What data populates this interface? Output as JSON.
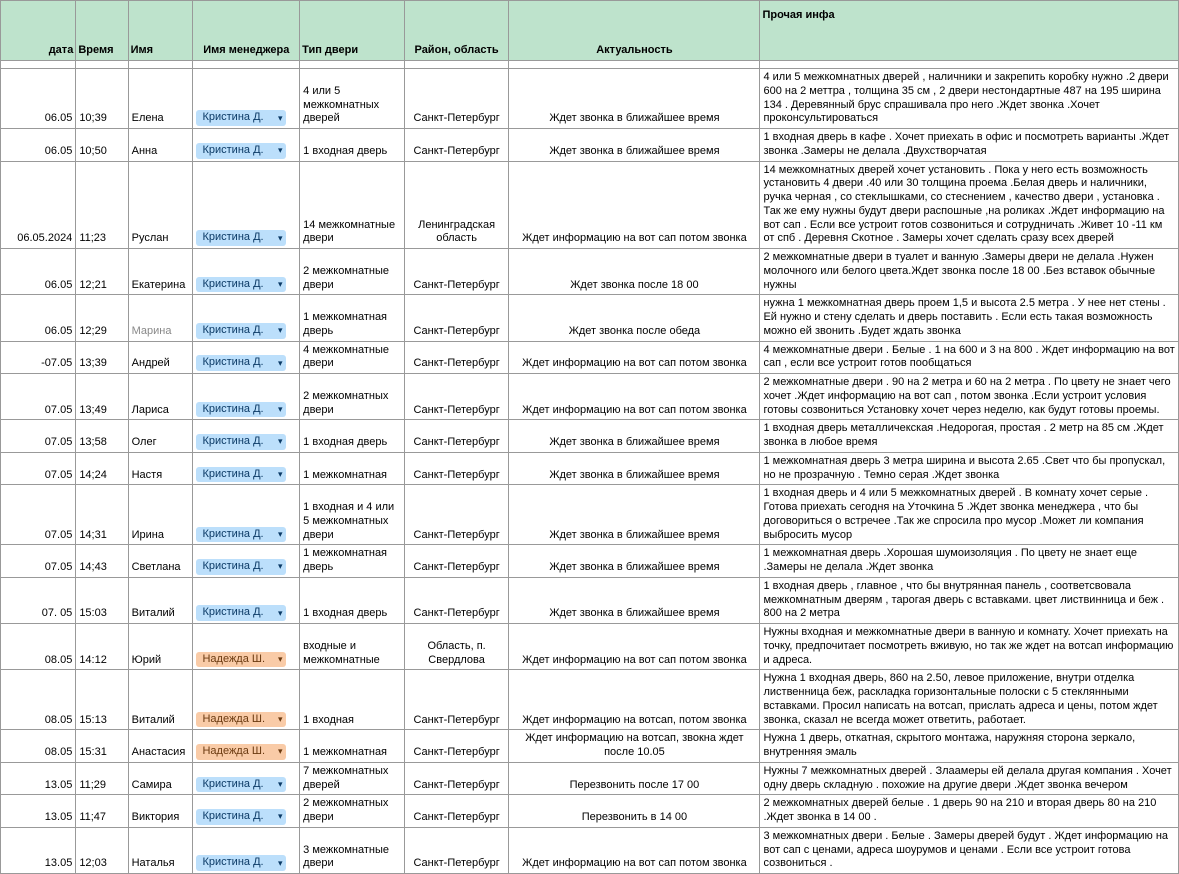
{
  "columns": {
    "date": "дата",
    "time": "Время",
    "name": "Имя",
    "manager": "Имя менеджера",
    "doortype": "Тип двери",
    "region": "Район, область",
    "actuality": "Актуальность",
    "info": "Прочая инфа"
  },
  "colors": {
    "header_bg": "#bee3cc",
    "manager_blue_bg": "#bcdffb",
    "manager_blue_fg": "#0b3a66",
    "manager_orange_bg": "#f9cba7",
    "manager_orange_fg": "#6b3a10",
    "border": "#999999",
    "gray_text": "#888888"
  },
  "rows": [
    {
      "date": "06.05",
      "time": "10;39",
      "name": "Елена",
      "manager": "Кристина Д.",
      "manager_color": "blue",
      "doortype": "4 или 5 межкомнатных дверей",
      "region": "Санкт-Петербург",
      "actuality": "Ждет звонка в ближайшее время",
      "info": "4 или 5 межкомнатных дверей , наличники  и закрепить коробку нужно .2 двери  600 на 2 меттра , толщина 35 см , 2 двери нестондартные  487 на 195 ширина  134 . Деревянный брус  спрашивала про него .Ждет звонка .Хочет проконсультироваться"
    },
    {
      "date": "06.05",
      "time": "10;50",
      "name": "Анна",
      "manager": "Кристина Д.",
      "manager_color": "blue",
      "doortype": "1 входная дверь",
      "region": "Санкт-Петербург",
      "actuality": "Ждет звонка в ближайшее время",
      "info": "1 входная дверь в кафе . Хочет приехать в офис и посмотреть варианты .Ждет  звонка .Замеры не делала .Двухстворчатая"
    },
    {
      "date": "06.05.2024",
      "time": "11;23",
      "name": "Руслан",
      "manager": "Кристина Д.",
      "manager_color": "blue",
      "doortype": "14 межкомнатные двери",
      "region": "Ленинградская область",
      "actuality": "Ждет информацию на вот сап  потом звонка",
      "info": "14 межкомнатных дверей хочет установить . Пока у него есть возможность установить 4 двери .40 или 30  толщина проема .Белая дверь и наличники, ручка черная , со стеклышками, со стеснением , качество двери , установка . Так же ему нужны будут двери  распошные ,на роликах .Ждет информацию на вот сап . Если все устроит готов созвониться и сотрудничать .Живет 10 -11 км от спб . Деревня Скотное . Замеры  хочет сделать сразу всех дверей"
    },
    {
      "date": "06.05",
      "time": "12;21",
      "name": "Екатерина",
      "manager": "Кристина Д.",
      "manager_color": "blue",
      "doortype": "2 межкомнатные двери",
      "region": "Санкт-Петербург",
      "actuality": "Ждет звонка после 18 00",
      "info": "2 межкомнатные двери в туалет и ванную .Замеры двери не делала .Нужен молочного или белого цвета.Ждет звонка после 18 00 .Без вставок обычные нужны"
    },
    {
      "date": "06.05",
      "time": "12;29",
      "name": "Марина",
      "name_gray": true,
      "manager": "Кристина Д.",
      "manager_color": "blue",
      "doortype": "1 межкомнатная дверь",
      "region": "Санкт-Петербург",
      "actuality": "Ждет звонка после обеда",
      "info": "нужна  1 межкомнатная  дверь проем  1,5 и высота 2.5 метра . У нее нет стены . Ей нужно и стену сделать и дверь поставить . Если есть такая возможность можно ей звонить .Будет ждать звонка"
    },
    {
      "date": "-07.05",
      "time": "13;39",
      "name": "Андрей",
      "manager": "Кристина Д.",
      "manager_color": "blue",
      "doortype": "4 межкомнатные двери",
      "region": "Санкт-Петербург",
      "actuality": "Ждет информацию на вот сап  потом звонка",
      "info": "4 межкомнатные двери . Белые . 1 на 600 и 3 на 800 . Ждет информацию на вот сап , если все устроит готов пообщаться"
    },
    {
      "date": "07.05",
      "time": "13;49",
      "name": "Лариса",
      "manager": "Кристина Д.",
      "manager_color": "blue",
      "doortype": "2 межкомнатных двери",
      "region": "Санкт-Петербург",
      "actuality": "Ждет информацию на вот сап  потом звонка",
      "info": "2  межкомнатные двери .  90 на 2 метра и 60 на 2 метра . По цвету не знает чего хочет .Ждет информацию на вот сап , потом звонка .Если устроит условия готовы созвониться  Установку хочет через неделю, как будут готовы проемы."
    },
    {
      "date": "07.05",
      "time": "13;58",
      "name": "Олег",
      "manager": "Кристина Д.",
      "manager_color": "blue",
      "doortype": "1 входная дверь",
      "region": "Санкт-Петербург",
      "actuality": "Ждет звонка в ближайшее время",
      "info": "1 входная дверь металличекская .Недорогая, простая . 2 метр на 85 см .Ждет звонка в любое время"
    },
    {
      "date": "07.05",
      "time": "14;24",
      "name": "Настя",
      "manager": "Кристина Д.",
      "manager_color": "blue",
      "doortype": "1 межкомнатная",
      "region": "Санкт-Петербург",
      "actuality": "Ждет звонка в ближайшее время",
      "info": "1 межкомнатная дверь 3 метра ширина и высота 2.65 .Свет что бы пропускал, но не прозрачную . Темно серая .Ждет звонка"
    },
    {
      "date": "07.05",
      "time": "14;31",
      "name": "Ирина",
      "manager": "Кристина Д.",
      "manager_color": "blue",
      "doortype": "1 входная и 4 или 5 межкомнатных двери",
      "region": "Санкт-Петербург",
      "actuality": "Ждет звонка в ближайшее время",
      "info": "1 входная дверь и 4 или 5 межкомнатных дверей . В комнату хочет серые . Готова приехать сегодня на Уточкина 5 .Ждет звонка менеджера , что бы договориться о встречее .Так же спросила про мусор .Может ли компания выбросить мусор"
    },
    {
      "date": "07.05",
      "time": "14;43",
      "name": "Светлана",
      "manager": "Кристина Д.",
      "manager_color": "blue",
      "doortype": "1 межкомнатная дверь",
      "region": "Санкт-Петербург",
      "actuality": "Ждет звонка в ближайшее время",
      "info": "1 межкомнатная дверь .Хорошая шумоизоляция . По цвету не  знает еще .Замеры не делала .Ждет звонка"
    },
    {
      "date": "07. 05",
      "time": "15:03",
      "name": "Виталий",
      "manager": "Кристина Д.",
      "manager_color": "blue",
      "doortype": "1 входная дверь",
      "region": "Санкт-Петербург",
      "actuality": "Ждет звонка в ближайшее время",
      "info": "1 входная дверь ,  главное , что бы внутрянная панель , соответсвовала межкомнатным дверям , тарогая дверь  с вставками. цвет листвинница и беж . 800 на 2 метра"
    },
    {
      "date": "08.05",
      "time": "14:12",
      "name": "Юрий",
      "manager": "Надежда Ш.",
      "manager_color": "orange",
      "doortype": "входные и межкомнатные",
      "region": "Область, п. Свердлова",
      "actuality": "Ждет информацию на вот сап  потом звонка",
      "info": "Нужны входная и межкомнатные двери в ванную и комнату. Хочет приехать на точку, предпочитает посмотреть вживую, но так же ждет на вотсап информацию и адреса."
    },
    {
      "date": "08.05",
      "time": "15:13",
      "name": "Виталий",
      "manager": "Надежда Ш.",
      "manager_color": "orange",
      "doortype": "1 входная",
      "region": "Санкт-Петербург",
      "actuality": "Ждет информацию на вотсап, потом звонка",
      "info": "Нужна 1 входная дверь, 860 на 2.50, левое приложение, внутри отделка лиственница беж, раскладка горизонтальные полоски с 5 стеклянными вставками. Просил написать на вотсап, прислать адреса и цены, потом ждет звонка, сказал не всегда может ответить, работает."
    },
    {
      "date": "08.05",
      "time": "15:31",
      "name": "Анастасия",
      "manager": "Надежда Ш.",
      "manager_color": "orange",
      "doortype": "1 межкомнатная",
      "region": "Санкт-Петербург",
      "actuality": "Ждет информацию на вотсап, звокна ждет после 10.05",
      "info": "Нужна 1 дверь, откатная, скрытого монтажа, наружняя сторона зеркало, внутренняя эмаль"
    },
    {
      "date": "13.05",
      "time": "11;29",
      "name": "Самира",
      "manager": "Кристина Д.",
      "manager_color": "blue",
      "doortype": "7 межкомнатных дверей",
      "region": "Санкт-Петербург",
      "actuality": "Перезвонить после 17 00",
      "info": "Нужны 7 межкомнатных дверей . Злаамеры ей делала другая компания . Хочет одну дверь  складную . похожие на другие двери .Ждет звонка вечером"
    },
    {
      "date": "13.05",
      "time": "11;47",
      "name": "Виктория",
      "manager": "Кристина Д.",
      "manager_color": "blue",
      "doortype": "2 межкомнатных двери",
      "region": "Санкт-Петербург",
      "actuality": "Перезвонить в 14 00",
      "info": "2 межкомнатных дверей белые . 1 дверь 90 на 210 и вторая дверь  80 на 210 .Ждет звонка в 14 00 ."
    },
    {
      "date": "13.05",
      "time": "12;03",
      "name": "Наталья",
      "manager": "Кристина Д.",
      "manager_color": "blue",
      "doortype": "3 межкомнатные двери",
      "region": "Санкт-Петербург",
      "actuality": "Ждет информацию на вот сап  потом звонка",
      "info": "3 межкомнатных двери . Белые . Замеры дверей будут . Ждет информацию на вот сап  с ценами, адреса шоурумов и ценами . Если все устроит готова созвониться ."
    }
  ]
}
